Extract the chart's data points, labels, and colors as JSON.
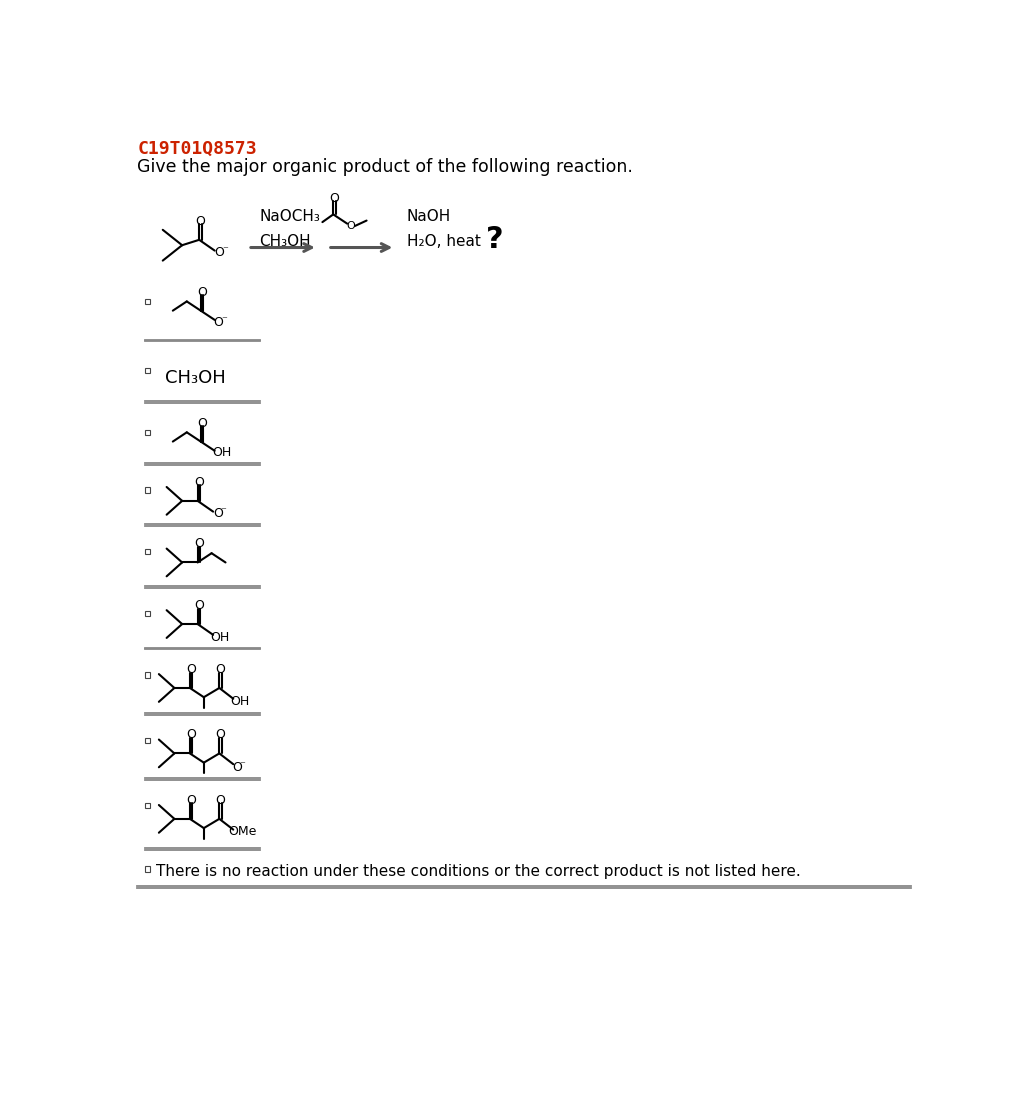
{
  "title": "C19T01Q8573",
  "question": "Give the major organic product of the following reaction.",
  "title_color": "#CC2200",
  "bg_color": "#FFFFFF",
  "text_color": "#000000",
  "reagent_line1_above": "NaOCH₃",
  "reagent_line1_below": "CH₃OH",
  "reagent_line2_above": "NaOH",
  "reagent_line2_below": "H₂O, heat",
  "last_choice_text": "There is no reaction under these conditions or the correct product is not listed here.",
  "choice_tops": [
    210,
    300,
    380,
    455,
    535,
    615,
    695,
    780,
    865
  ],
  "sep_y_offsets": [
    270,
    350,
    430,
    510,
    590,
    670,
    755,
    840,
    930
  ]
}
